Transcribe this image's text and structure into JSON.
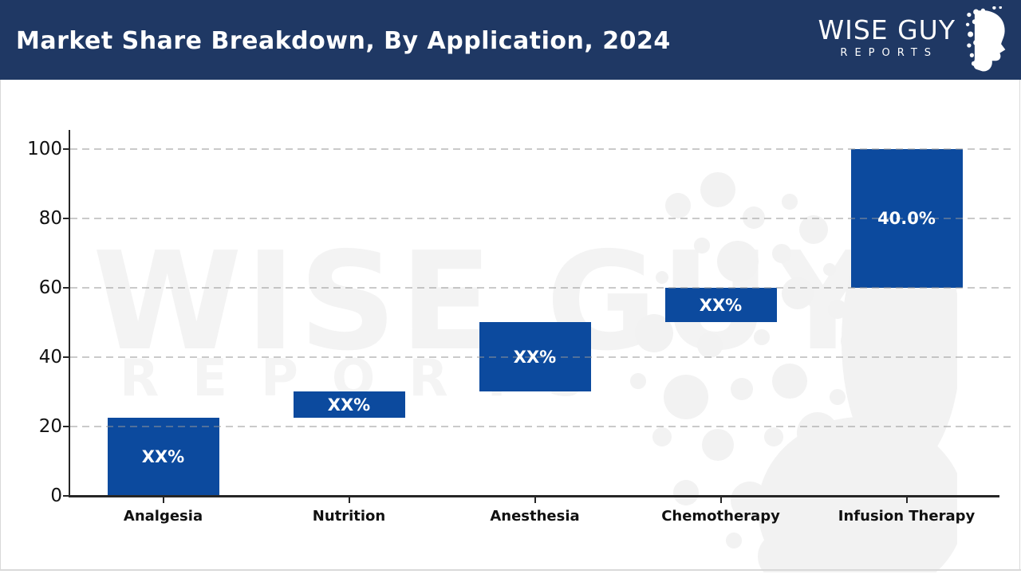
{
  "header": {
    "title": "Market Share Breakdown, By Application, 2024",
    "brand": {
      "line1": "WISE GUY",
      "line2": "REPORTS"
    }
  },
  "watermark": {
    "line1": "WISE GUY",
    "line2": "REPORTS"
  },
  "chart_data": {
    "type": "bar",
    "subtype": "waterfall",
    "title": "Market Share Breakdown, By Application, 2024",
    "categories": [
      "Analgesia",
      "Nutrition",
      "Anesthesia",
      "Chemotherapy",
      "Infusion Therapy"
    ],
    "values": [
      22.5,
      7.5,
      20,
      10,
      40
    ],
    "baselines": [
      0,
      22.5,
      30,
      50,
      60
    ],
    "tops": [
      22.5,
      30,
      50,
      60,
      100
    ],
    "bar_labels": [
      "XX%",
      "XX%",
      "XX%",
      "XX%",
      "40.0%"
    ],
    "yticks": [
      0,
      20,
      40,
      60,
      80,
      100
    ],
    "ylim": [
      0,
      105
    ],
    "xlabel": "",
    "ylabel": "",
    "legend": "none",
    "grid": "horizontal-dashed",
    "bar_color": "#0c4a9e",
    "bar_label_color": "#ffffff"
  },
  "colors": {
    "header_bg": "#1f3864",
    "axis": "#262626",
    "grid": "#d9d9d9",
    "watermark": "#f3f3f3",
    "title_text": "#ffffff"
  }
}
